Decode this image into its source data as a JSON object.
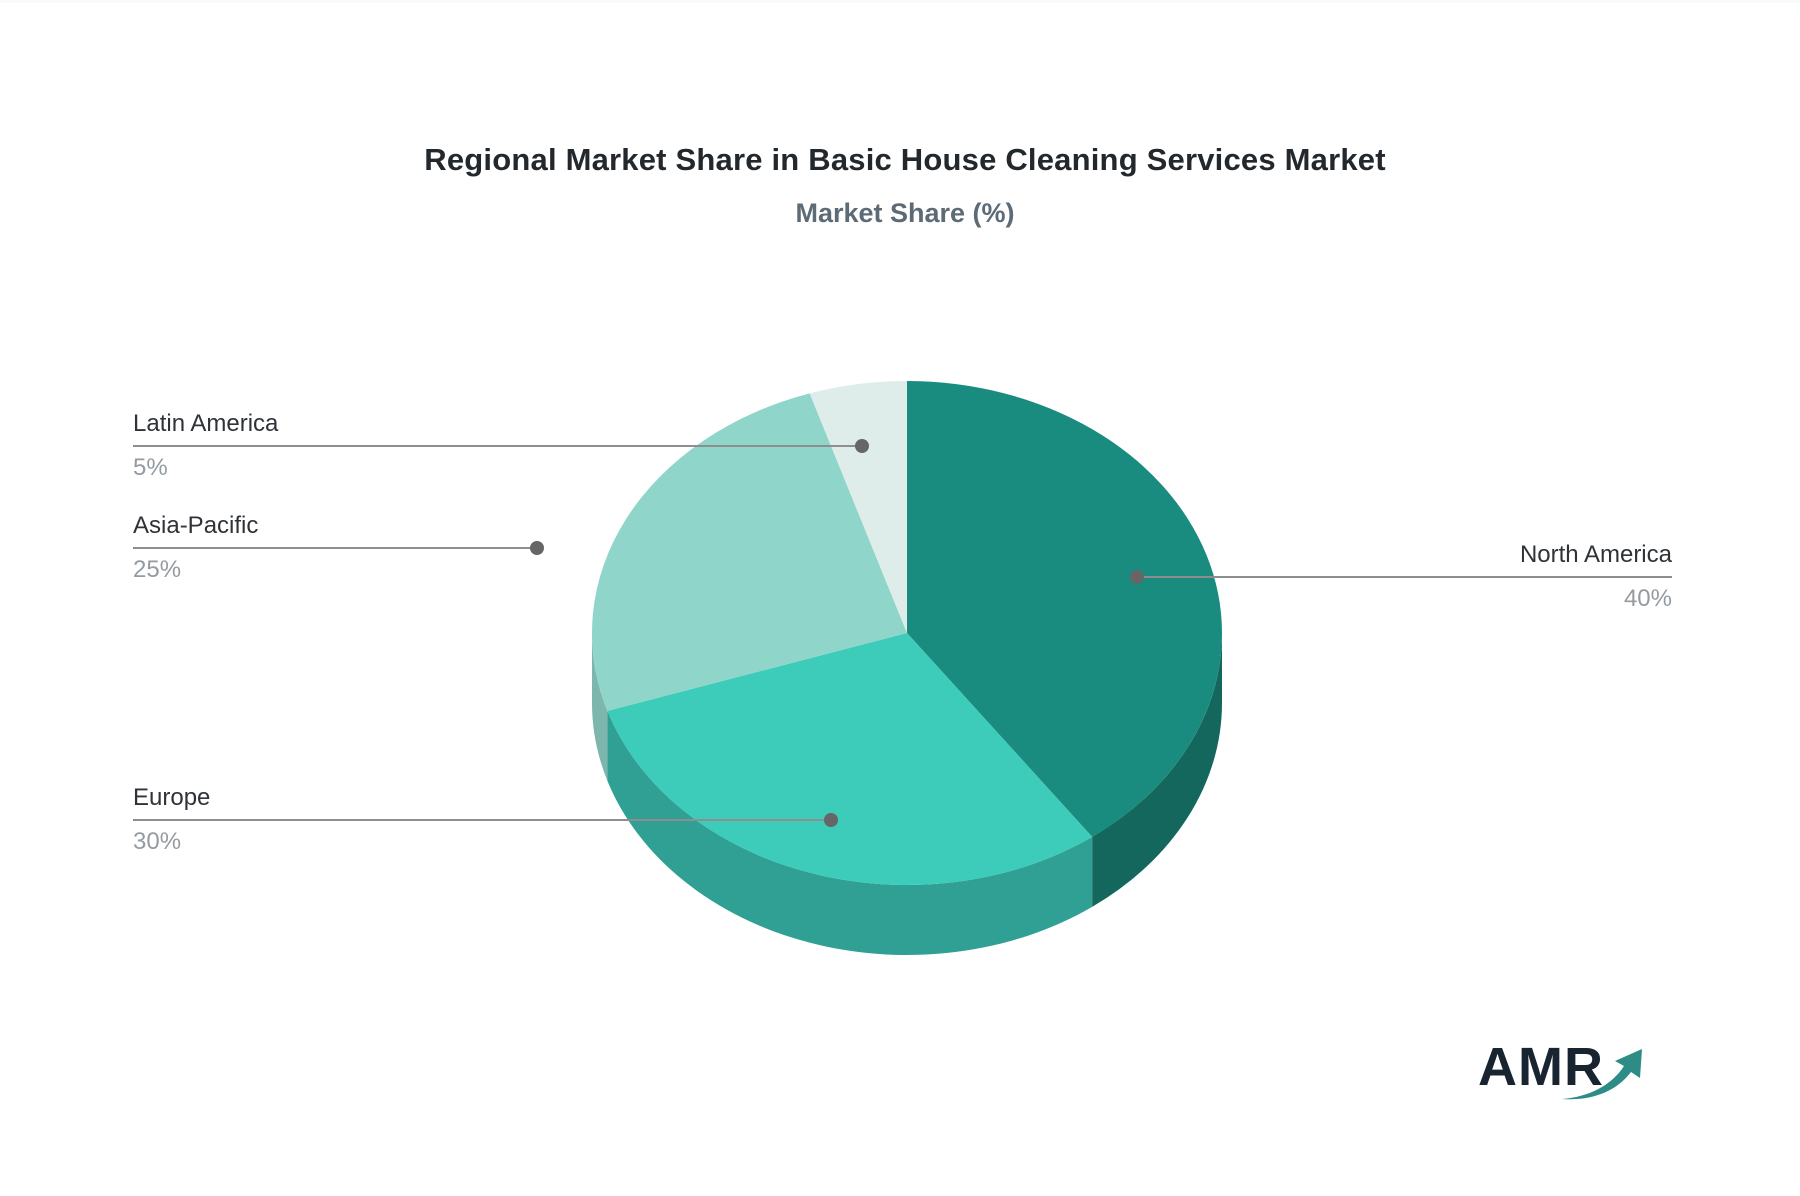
{
  "chart_data": {
    "type": "pie",
    "style": "3d",
    "title": "Regional Market Share in Basic House Cleaning Services Market",
    "subtitle": "Market Share (%)",
    "unit": "%",
    "start_angle_deg": 0,
    "direction": "clockwise",
    "legend": "none",
    "connector_color": "#8e8e8e",
    "slices": [
      {
        "label": "North America",
        "value": 40,
        "display": "40%",
        "color": "#1a8c7f",
        "side_color": "#14675c",
        "label_side": "right"
      },
      {
        "label": "Europe",
        "value": 30,
        "display": "30%",
        "color": "#3cccb9",
        "side_color": "#2fa093",
        "label_side": "left"
      },
      {
        "label": "Asia-Pacific",
        "value": 25,
        "display": "25%",
        "color": "#8fd5ca",
        "side_color": "#7cb6ac",
        "label_side": "left"
      },
      {
        "label": "Latin America",
        "value": 5,
        "display": "5%",
        "color": "#dfedea",
        "side_color": "#c6dcd7",
        "label_side": "left"
      }
    ]
  },
  "logo": {
    "text": "AMR",
    "arrow_color": "#2d8d86"
  }
}
